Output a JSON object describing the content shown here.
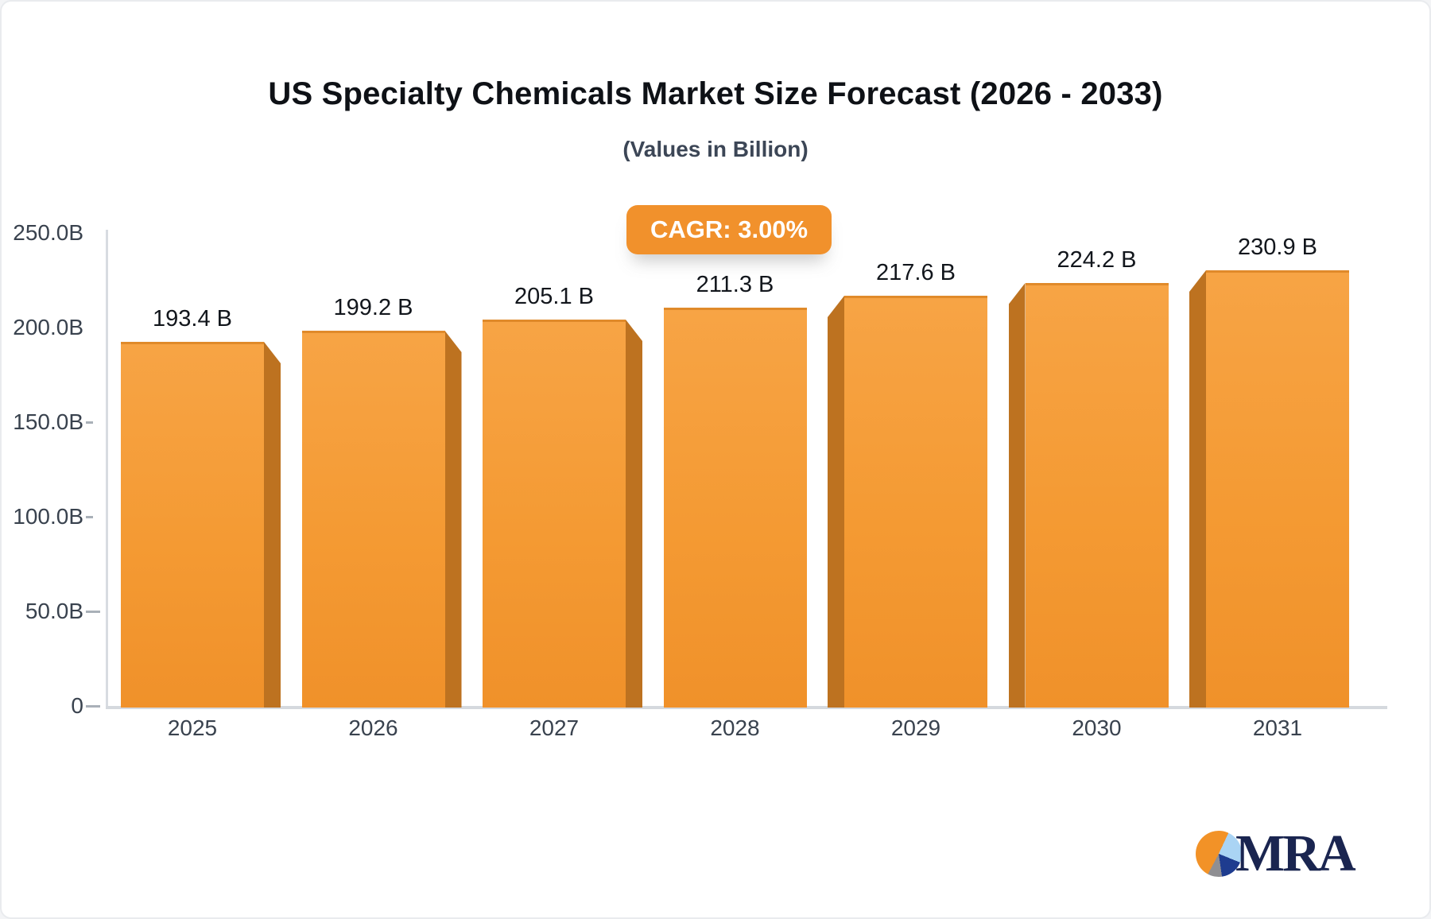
{
  "header": {
    "title": "US Specialty Chemicals Market Size Forecast (2026 - 2033)",
    "subtitle": "(Values in Billion)"
  },
  "badge": {
    "label": "CAGR: 3.00%"
  },
  "logo": {
    "text": "MRA",
    "pie_icon": "pie-chart-icon"
  },
  "colors": {
    "bar_top": "#f7a445",
    "bar_mid": "#f49a33",
    "bar_bottom": "#f0912a",
    "bar_edge": "#e08a2a",
    "bar_side": "#bd7220",
    "badge_bg": "#f1912c",
    "logo_orange": "#f29227",
    "logo_lightblue": "#aad4f4",
    "logo_navy": "#1e3c8f",
    "logo_gray": "#8f8f93",
    "logo_navy_text": "#1a2550"
  },
  "chart_data": {
    "type": "bar",
    "title": "US Specialty Chemicals Market Size Forecast (2026 - 2033)",
    "subtitle": "(Values in Billion)",
    "annotation": "CAGR: 3.00%",
    "categories": [
      "2025",
      "2026",
      "2027",
      "2028",
      "2029",
      "2030",
      "2031"
    ],
    "values": [
      193.4,
      199.2,
      205.1,
      211.3,
      217.6,
      224.2,
      230.9
    ],
    "value_labels": [
      "193.4 B",
      "199.2 B",
      "205.1 B",
      "211.3 B",
      "217.6 B",
      "224.2 B",
      "230.9 B"
    ],
    "xlabel": "",
    "ylabel": "",
    "ylim": [
      0,
      250
    ],
    "yticks": [
      {
        "label": "250.0B",
        "value": 250
      },
      {
        "label": "200.0B",
        "value": 200
      },
      {
        "label": "150.0B",
        "value": 150
      },
      {
        "label": "100.0B",
        "value": 100
      },
      {
        "label": "50.0B",
        "value": 50
      },
      {
        "label": "0",
        "value": 0
      }
    ],
    "grid": false,
    "legend": false,
    "bar_style": "3d-orange"
  }
}
